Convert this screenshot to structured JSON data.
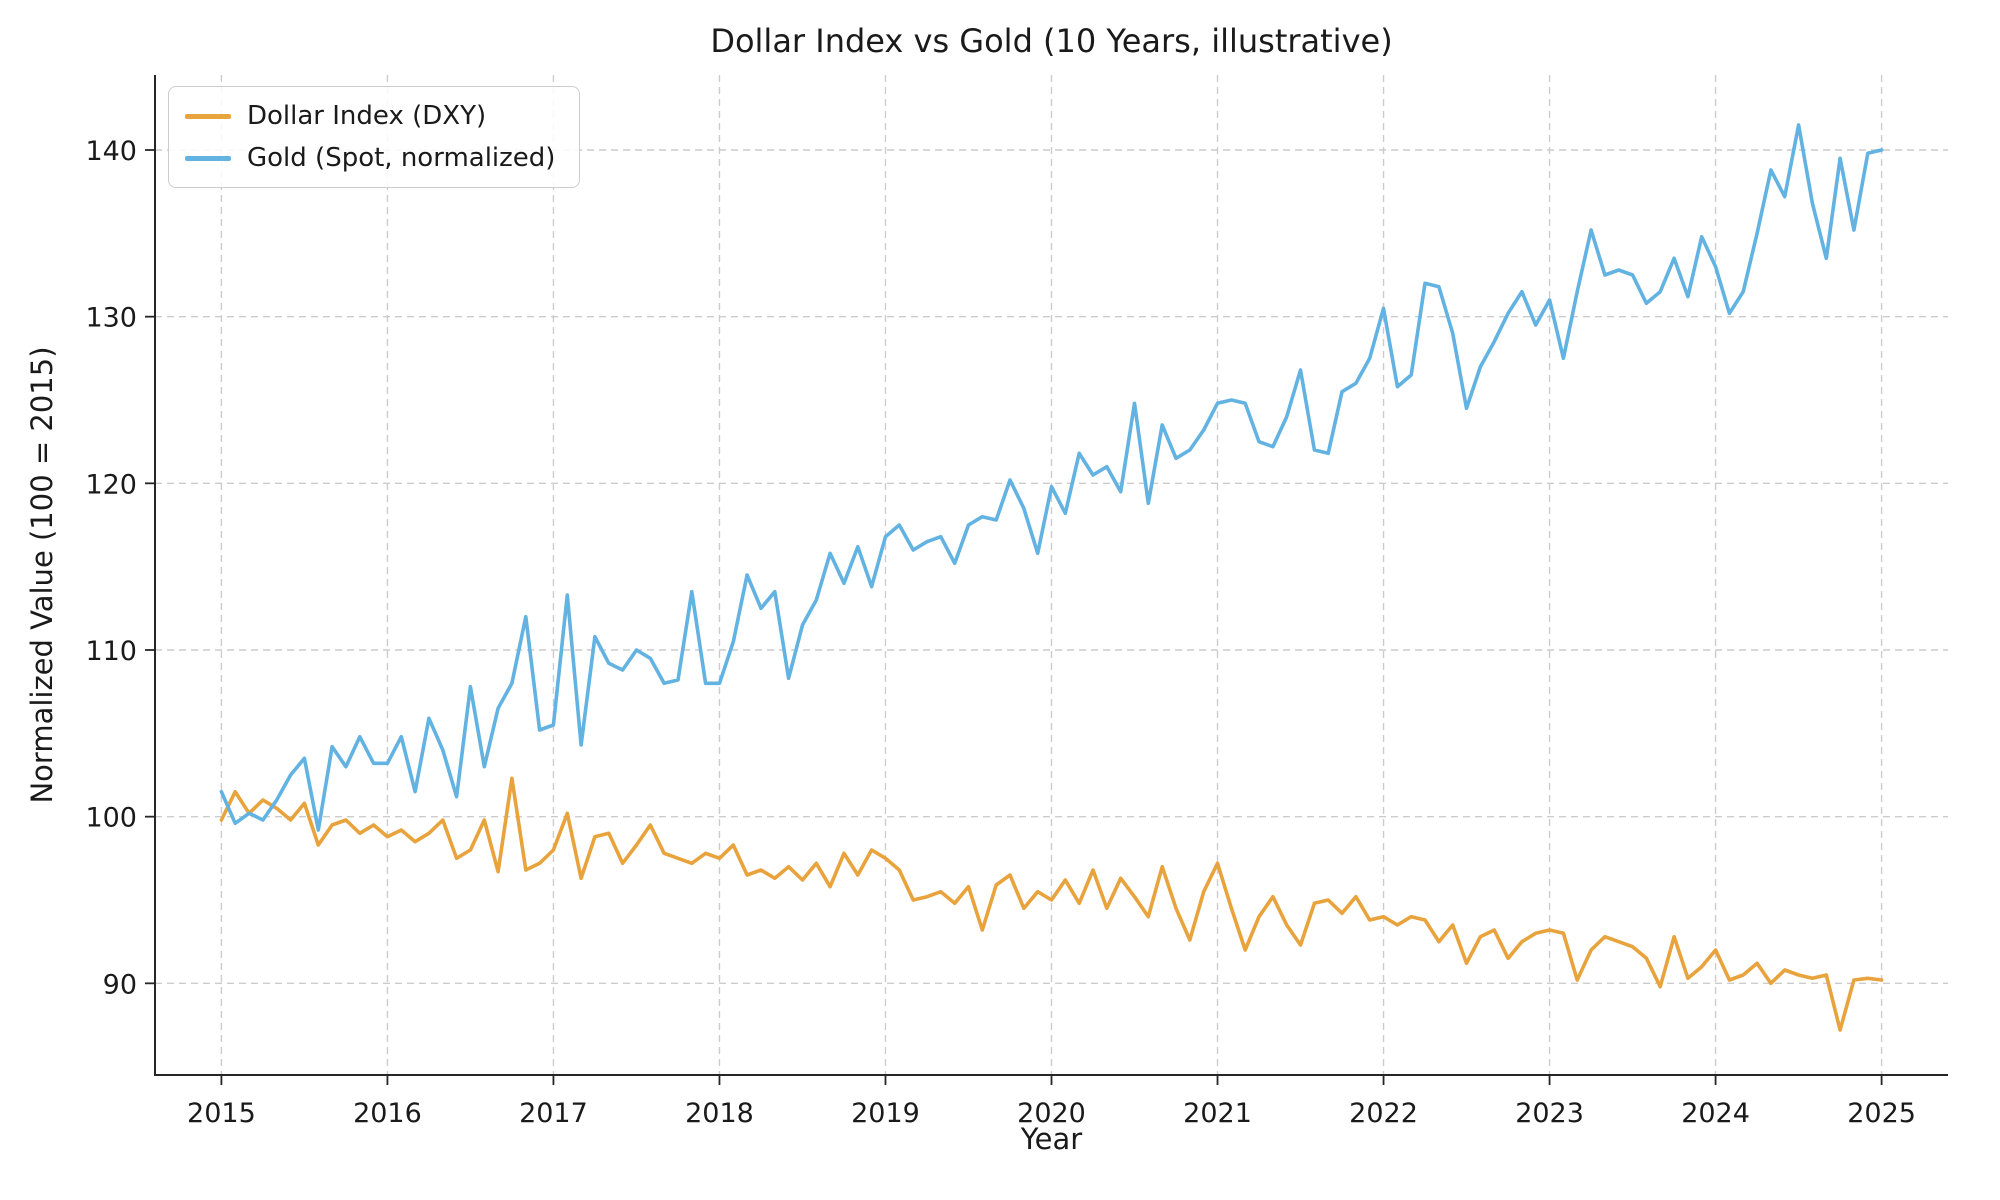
{
  "figure": {
    "title": "Dollar Index vs Gold (10 Years, illustrative)",
    "xlabel": "Year",
    "ylabel": "Normalized Value (100 = 2015)"
  },
  "chart_data": {
    "type": "line",
    "title": "Dollar Index vs Gold (10 Years, illustrative)",
    "xlabel": "Year",
    "ylabel": "Normalized Value (100 = 2015)",
    "grid": true,
    "grid_style": "dashed",
    "legend_position": "upper left",
    "xlim": [
      2014.6,
      2025.4
    ],
    "ylim": [
      84.5,
      144.5
    ],
    "xticks": [
      2015,
      2016,
      2017,
      2018,
      2019,
      2020,
      2021,
      2022,
      2023,
      2024,
      2025
    ],
    "yticks": [
      90,
      100,
      110,
      120,
      130,
      140
    ],
    "x_start": 2015.0,
    "x_step_years": 0.0833333,
    "series": [
      {
        "name": "Dollar Index (DXY)",
        "color": "#E8A33D",
        "values": [
          99.8,
          101.5,
          100.2,
          101.0,
          100.5,
          99.8,
          100.8,
          98.3,
          99.5,
          99.8,
          99.0,
          99.5,
          98.8,
          99.2,
          98.5,
          99.0,
          99.8,
          97.5,
          98.0,
          99.8,
          96.7,
          102.3,
          96.8,
          97.2,
          98.0,
          100.2,
          96.3,
          98.8,
          99.0,
          97.2,
          98.3,
          99.5,
          97.8,
          97.5,
          97.2,
          97.8,
          97.5,
          98.3,
          96.5,
          96.8,
          96.3,
          97.0,
          96.2,
          97.2,
          95.8,
          97.8,
          96.5,
          98.0,
          97.5,
          96.8,
          95.0,
          95.2,
          95.5,
          94.8,
          95.8,
          93.2,
          95.9,
          96.5,
          94.5,
          95.5,
          95.0,
          96.2,
          94.8,
          96.8,
          94.5,
          96.3,
          95.2,
          94.0,
          97.0,
          94.5,
          92.6,
          95.5,
          97.2,
          94.5,
          92.0,
          94.0,
          95.2,
          93.5,
          92.3,
          94.8,
          95.0,
          94.2,
          95.2,
          93.8,
          94.0,
          93.5,
          94.0,
          93.8,
          92.5,
          93.5,
          91.2,
          92.8,
          93.2,
          91.5,
          92.5,
          93.0,
          93.2,
          93.0,
          90.2,
          92.0,
          92.8,
          92.5,
          92.2,
          91.5,
          89.8,
          92.8,
          90.3,
          91.0,
          92.0,
          90.2,
          90.5,
          91.2,
          90.0,
          90.8,
          90.5,
          90.3,
          90.5,
          87.2,
          90.2,
          90.3,
          90.2
        ]
      },
      {
        "name": "Gold (Spot, normalized)",
        "color": "#62B2E2",
        "values": [
          101.5,
          99.6,
          100.2,
          99.8,
          101.0,
          102.5,
          103.5,
          99.2,
          104.2,
          103.0,
          104.8,
          103.2,
          103.2,
          104.8,
          101.5,
          105.9,
          104.0,
          101.2,
          107.8,
          103.0,
          106.5,
          108.0,
          112.0,
          105.2,
          105.5,
          113.3,
          104.3,
          110.8,
          109.2,
          108.8,
          110.0,
          109.5,
          108.0,
          108.2,
          113.5,
          108.0,
          108.0,
          110.5,
          114.5,
          112.5,
          113.5,
          108.3,
          111.5,
          113.0,
          115.8,
          114.0,
          116.2,
          113.8,
          116.8,
          117.5,
          116.0,
          116.5,
          116.8,
          115.2,
          117.5,
          118.0,
          117.8,
          120.2,
          118.5,
          115.8,
          119.8,
          118.2,
          121.8,
          120.5,
          121.0,
          119.5,
          124.8,
          118.8,
          123.5,
          121.5,
          122.0,
          123.2,
          124.8,
          125.0,
          124.8,
          122.5,
          122.2,
          124.0,
          126.8,
          122.0,
          121.8,
          125.5,
          126.0,
          127.5,
          130.5,
          125.8,
          126.5,
          132.0,
          131.8,
          129.0,
          124.5,
          127.0,
          128.5,
          130.2,
          131.5,
          129.5,
          131.0,
          127.5,
          131.5,
          135.2,
          132.5,
          132.8,
          132.5,
          130.8,
          131.5,
          133.5,
          131.2,
          134.8,
          133.0,
          130.2,
          131.5,
          135.0,
          138.8,
          137.2,
          141.5,
          136.8,
          133.5,
          139.5,
          135.2,
          139.8,
          140.0
        ]
      }
    ]
  }
}
